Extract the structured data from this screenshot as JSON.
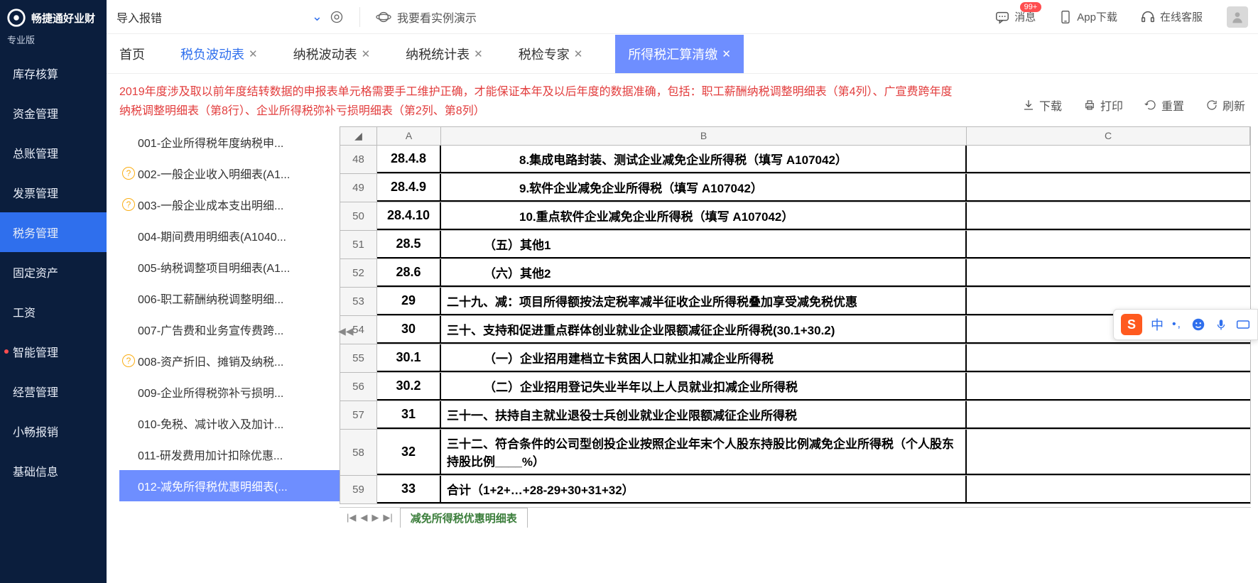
{
  "brand": {
    "name": "畅捷通好业财",
    "edition": "专业版"
  },
  "topbar": {
    "dropdown_label": "导入报错",
    "demo_label": "我要看实例演示",
    "messages_label": "消息",
    "badge": "99+",
    "app_download_label": "App下载",
    "online_service_label": "在线客服"
  },
  "nav": {
    "items": [
      {
        "label": "库存核算"
      },
      {
        "label": "资金管理"
      },
      {
        "label": "总账管理"
      },
      {
        "label": "发票管理"
      },
      {
        "label": "税务管理",
        "active": true
      },
      {
        "label": "固定资产"
      },
      {
        "label": "工资"
      },
      {
        "label": "智能管理",
        "dot": true
      },
      {
        "label": "经营管理"
      },
      {
        "label": "小畅报销"
      },
      {
        "label": "基础信息"
      }
    ]
  },
  "tabs": {
    "items": [
      {
        "label": "首页",
        "closable": false
      },
      {
        "label": "税负波动表",
        "closable": true,
        "link": true
      },
      {
        "label": "纳税波动表",
        "closable": true
      },
      {
        "label": "纳税统计表",
        "closable": true
      },
      {
        "label": "税检专家",
        "closable": true
      },
      {
        "label": "所得税汇算清缴",
        "closable": true,
        "active": true
      }
    ]
  },
  "notice": "2019年度涉及取以前年度结转数据的申报表单元格需要手工维护正确，才能保证本年及以后年度的数据准确，包括：职工薪酬纳税调整明细表（第4列）、广宣费跨年度纳税调整明细表（第8行）、企业所得税弥补亏损明细表（第2列、第8列）",
  "toolbar": {
    "download": "下载",
    "print": "打印",
    "reset": "重置",
    "refresh": "刷新"
  },
  "tree": {
    "items": [
      {
        "label": "001-企业所得税年度纳税申..."
      },
      {
        "label": "002-一般企业收入明细表(A1...",
        "warn": true
      },
      {
        "label": "003-一般企业成本支出明细...",
        "warn": true
      },
      {
        "label": "004-期间费用明细表(A1040..."
      },
      {
        "label": "005-纳税调整项目明细表(A1..."
      },
      {
        "label": "006-职工薪酬纳税调整明细..."
      },
      {
        "label": "007-广告费和业务宣传费跨..."
      },
      {
        "label": "008-资产折旧、摊销及纳税...",
        "warn": true
      },
      {
        "label": "009-企业所得税弥补亏损明..."
      },
      {
        "label": "010-免税、减计收入及加计..."
      },
      {
        "label": "011-研发费用加计扣除优惠..."
      },
      {
        "label": "012-减免所得税优惠明细表(...",
        "selected": true
      }
    ]
  },
  "sheet": {
    "col_headers": {
      "A": "A",
      "B": "B",
      "C": "C"
    },
    "rows": [
      {
        "num": "48",
        "a": "28.4.8",
        "b": "8.集成电路封装、测试企业减免企业所得税（填写 A107042）",
        "indent": 2
      },
      {
        "num": "49",
        "a": "28.4.9",
        "b": "9.软件企业减免企业所得税（填写 A107042）",
        "indent": 2
      },
      {
        "num": "50",
        "a": "28.4.10",
        "b": "10.重点软件企业减免企业所得税（填写 A107042）",
        "indent": 2
      },
      {
        "num": "51",
        "a": "28.5",
        "b": "（五）其他1",
        "indent": 1
      },
      {
        "num": "52",
        "a": "28.6",
        "b": "（六）其他2",
        "indent": 1
      },
      {
        "num": "53",
        "a": "29",
        "b": "二十九、减：项目所得额按法定税率减半征收企业所得税叠加享受减免税优惠",
        "indent": 0
      },
      {
        "num": "54",
        "a": "30",
        "b": "三十、支持和促进重点群体创业就业企业限额减征企业所得税(30.1+30.2)",
        "indent": 0
      },
      {
        "num": "55",
        "a": "30.1",
        "b": "（一）企业招用建档立卡贫困人口就业扣减企业所得税",
        "indent": 1
      },
      {
        "num": "56",
        "a": "30.2",
        "b": "（二）企业招用登记失业半年以上人员就业扣减企业所得税",
        "indent": 1
      },
      {
        "num": "57",
        "a": "31",
        "b": "三十一、扶持自主就业退役士兵创业就业企业限额减征企业所得税",
        "indent": 0
      },
      {
        "num": "58",
        "a": "32",
        "b": "三十二、符合条件的公司型创投企业按照企业年末个人股东持股比例减免企业所得税（个人股东持股比例____%）",
        "indent": 0
      },
      {
        "num": "59",
        "a": "33",
        "b": "合计（1+2+…+28-29+30+31+32）",
        "indent": 0
      }
    ],
    "tab_label": "减免所得税优惠明细表"
  },
  "ime": {
    "logo": "S",
    "lang": "中"
  }
}
